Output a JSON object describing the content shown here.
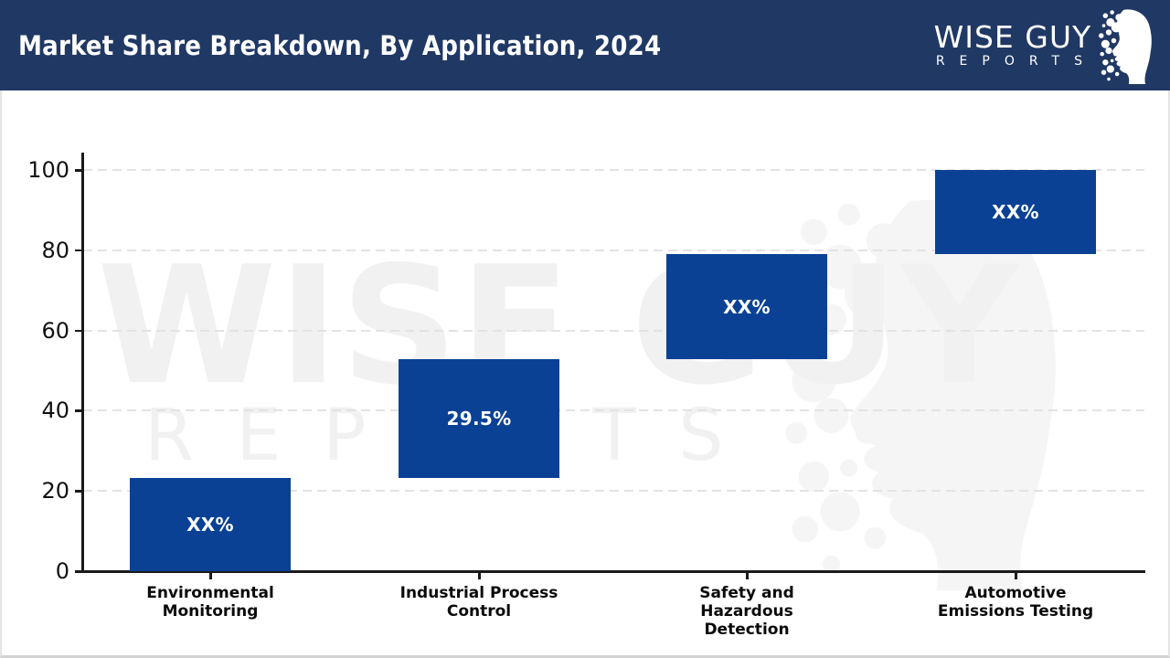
{
  "header": {
    "title": "Market Share Breakdown, By Application, 2024",
    "logo": {
      "line1": "WISE GUY",
      "line2": "REPORTS"
    }
  },
  "watermark": {
    "line1": "WISE GUY",
    "line2": "REPORTS"
  },
  "colors": {
    "header_bg": "#203864",
    "bar_blue": "#0a4195",
    "grid_gray": "#e3e3e3",
    "axis_black": "#1a1a1a",
    "watermark_gray": "#f1f1f1"
  },
  "chart_data": {
    "type": "bar",
    "subtype": "waterfall",
    "title": "Market Share Breakdown, By Application, 2024",
    "xlabel": "",
    "ylabel": "",
    "ylim": [
      0,
      100
    ],
    "yticks": [
      0,
      20,
      40,
      60,
      80,
      100
    ],
    "grid": "horizontal-dashed",
    "legend": "none",
    "bar_color": "#0a4195",
    "bars": [
      {
        "category": "Environmental\nMonitoring",
        "start": 0,
        "end": 23.3,
        "value": 23.3,
        "label": "XX%"
      },
      {
        "category": "Industrial Process\nControl",
        "start": 23.3,
        "end": 52.8,
        "value": 29.5,
        "label": "29.5%"
      },
      {
        "category": "Safety and\nHazardous\nDetection",
        "start": 52.8,
        "end": 79.0,
        "value": 26.2,
        "label": "XX%"
      },
      {
        "category": "Automotive\nEmissions Testing",
        "start": 79.0,
        "end": 100.0,
        "value": 21.0,
        "label": "XX%"
      }
    ]
  }
}
